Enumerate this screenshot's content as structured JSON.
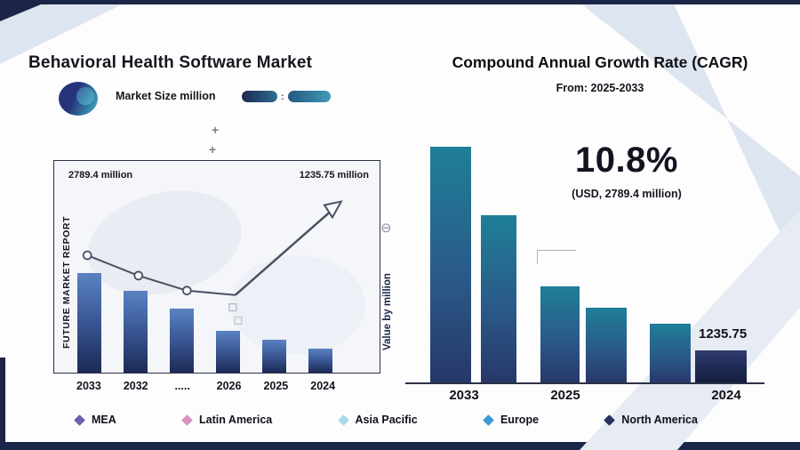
{
  "page": {
    "left_title": "Behavioral Health Software Market",
    "legend_label": "Market Size million",
    "right_title": "Compound Annual Growth Rate (CAGR)",
    "right_subtitle": "From: 2025-2033",
    "cagr_value": "10.8%",
    "cagr_note": "(USD, 2789.4 million)",
    "plus_glyph": "+",
    "minus_glyph": "⊖"
  },
  "chart_data": [
    {
      "id": "market-size-bars",
      "type": "bar",
      "title": "Behavioral Health Software Market",
      "unit": "USD million",
      "categories": [
        "2033",
        "2032",
        ".....",
        "2026",
        "2025",
        "2024"
      ],
      "values_relative": [
        100,
        82,
        64,
        42,
        33,
        24
      ],
      "labeled_values": {
        "2033": 2789.4,
        "2024": 1235.75
      },
      "start_value_label": "2789.4 million",
      "end_value_label": "1235.75 million",
      "y_axis_label": "FUTURE MARKET REPORT",
      "legend_position": "top",
      "grid": false,
      "bar_gradient": [
        "#5b82c2",
        "#1d2a56"
      ]
    },
    {
      "id": "cagr-bars",
      "type": "bar",
      "title": "Compound Annual Growth Rate (CAGR)",
      "unit": "USD million",
      "categories": [
        "2033",
        "2025",
        "2024"
      ],
      "series": [
        {
          "name": "series-primary",
          "values_relative": [
            100,
            41,
            25
          ]
        },
        {
          "name": "series-secondary",
          "values_relative": [
            71,
            32,
            14
          ]
        }
      ],
      "labeled_values": {
        "2024": 1235.75
      },
      "callout_value": "1235.75",
      "y_axis_label": "Value by million",
      "grid": false,
      "bar_gradient": [
        "#1f7f98",
        "#273769"
      ],
      "dark_bar_gradient": [
        "#2e3c70",
        "#131c3c"
      ]
    }
  ],
  "footer_legend": {
    "items": [
      {
        "label": "MEA",
        "color": "#6d5fae"
      },
      {
        "label": "Latin America",
        "color": "#d893c2"
      },
      {
        "label": "Asia Pacific",
        "color": "#a7d9e9"
      },
      {
        "label": "Europe",
        "color": "#3d9ad3"
      },
      {
        "label": "North America",
        "color": "#27335f"
      }
    ]
  }
}
